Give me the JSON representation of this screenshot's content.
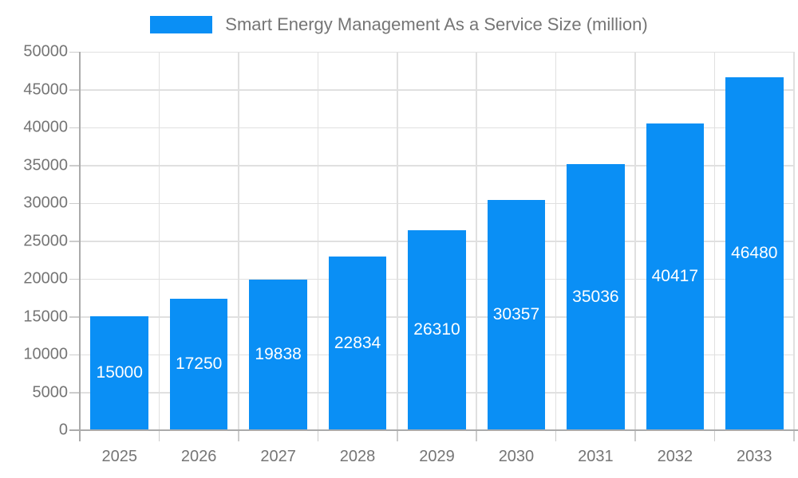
{
  "legend": {
    "label": "Smart Energy Management As a Service Size (million)"
  },
  "colors": {
    "bar": "#0a8ff5",
    "grid": "#e0e0e0",
    "axis": "#ababab",
    "tick": "#cccccc",
    "axis_text": "#757575",
    "bar_label_text": "#ffffff",
    "background": "#ffffff"
  },
  "chart_data": {
    "type": "bar",
    "title": "Smart Energy Management As a Service Size (million)",
    "categories": [
      "2025",
      "2026",
      "2027",
      "2028",
      "2029",
      "2030",
      "2031",
      "2032",
      "2033"
    ],
    "values": [
      15000,
      17250,
      19838,
      22834,
      26310,
      30357,
      35036,
      40417,
      46480
    ],
    "xlabel": "",
    "ylabel": "",
    "ylim": [
      0,
      50000
    ],
    "ytick_step": 5000,
    "yticks": [
      0,
      5000,
      10000,
      15000,
      20000,
      25000,
      30000,
      35000,
      40000,
      45000,
      50000
    ],
    "grid": true,
    "legend_position": "top",
    "bar_labels_inside": true
  }
}
